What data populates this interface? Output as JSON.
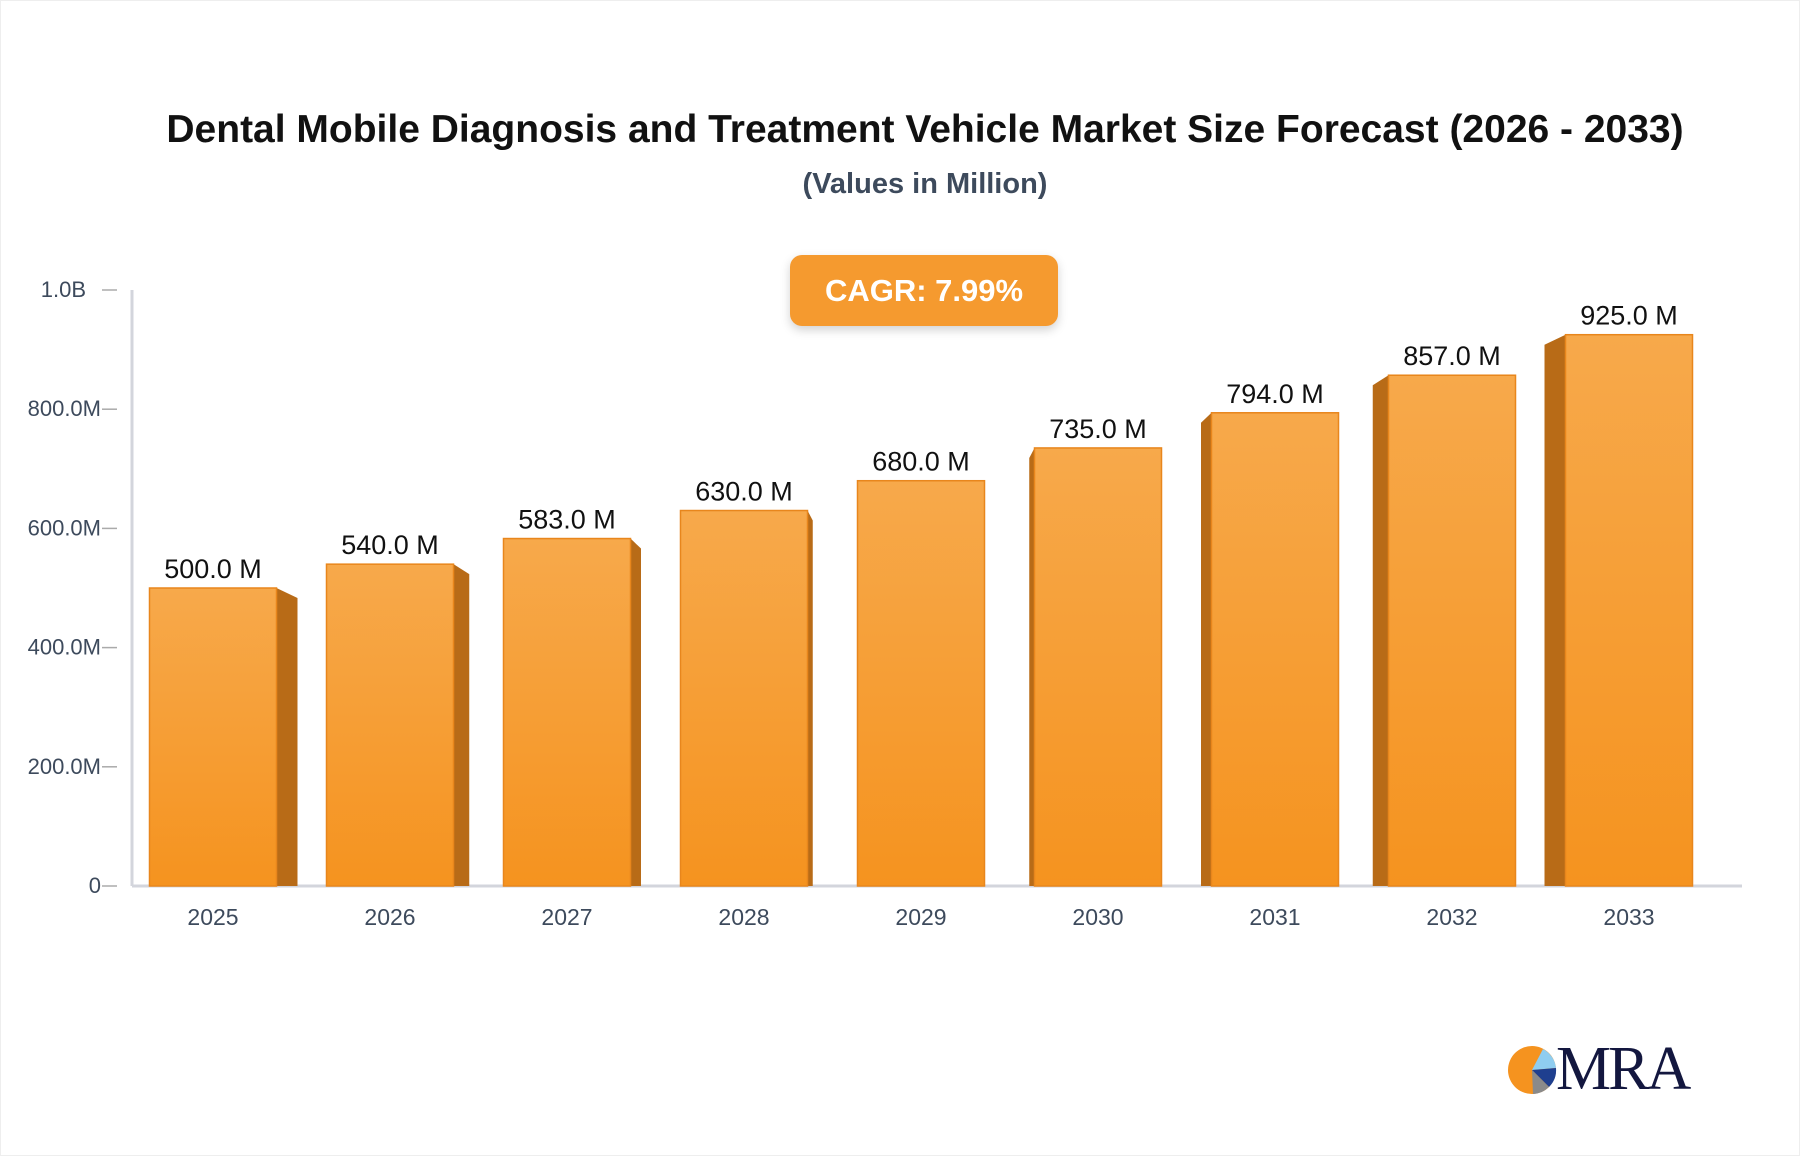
{
  "chart_data": {
    "type": "bar",
    "title": "Dental Mobile Diagnosis and Treatment Vehicle Market Size Forecast (2026 - 2033)",
    "subtitle": "(Values in Million)",
    "categories": [
      "2025",
      "2026",
      "2027",
      "2028",
      "2029",
      "2030",
      "2031",
      "2032",
      "2033"
    ],
    "values": [
      500.0,
      540.0,
      583.0,
      630.0,
      680.0,
      735.0,
      794.0,
      857.0,
      925.0
    ],
    "data_labels": [
      "500.0 M",
      "540.0 M",
      "583.0 M",
      "630.0 M",
      "680.0 M",
      "735.0 M",
      "794.0 M",
      "857.0 M",
      "925.0 M"
    ],
    "unit": "M",
    "ylim": [
      0,
      1000
    ],
    "yticks": [
      0,
      200,
      400,
      600,
      800,
      1000
    ],
    "ytick_labels": [
      "0",
      "200.0M",
      "400.0M",
      "600.0M",
      "800.0M",
      "1.0B"
    ],
    "grid": false,
    "bar_color": "#f59a2f",
    "bar_side_color": "#b86b17",
    "annotation": "CAGR: 7.99%"
  },
  "logo": {
    "text": "MRA"
  }
}
